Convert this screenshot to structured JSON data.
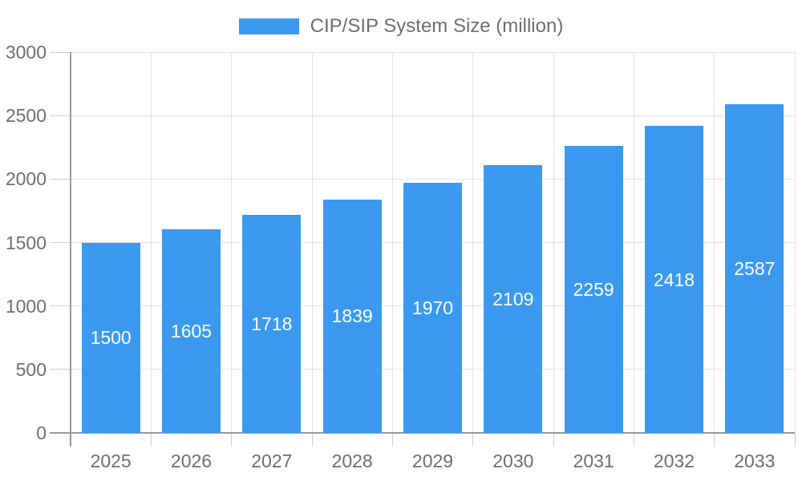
{
  "legend": {
    "label": "CIP/SIP System Size (million)"
  },
  "chart_data": {
    "type": "bar",
    "title": "",
    "xlabel": "",
    "ylabel": "",
    "series_name": "CIP/SIP System Size (million)",
    "categories": [
      "2025",
      "2026",
      "2027",
      "2028",
      "2029",
      "2030",
      "2031",
      "2032",
      "2033"
    ],
    "values": [
      1500,
      1605,
      1718,
      1839,
      1970,
      2109,
      2259,
      2418,
      2587
    ],
    "ylim": [
      0,
      3000
    ],
    "y_ticks": [
      0,
      500,
      1000,
      1500,
      2000,
      2500,
      3000
    ],
    "grid": true,
    "legend_position": "top-center",
    "value_labels": "inside-center-white"
  },
  "colors": {
    "bar": "#3B99F0",
    "grid_line": "#E3E3E3",
    "tick_line": "#CFCFCF",
    "axis_line": "#999999",
    "axis_text": "#6E6E6E",
    "bar_label_text": "#FFFFFF",
    "background": "#FFFFFF"
  }
}
